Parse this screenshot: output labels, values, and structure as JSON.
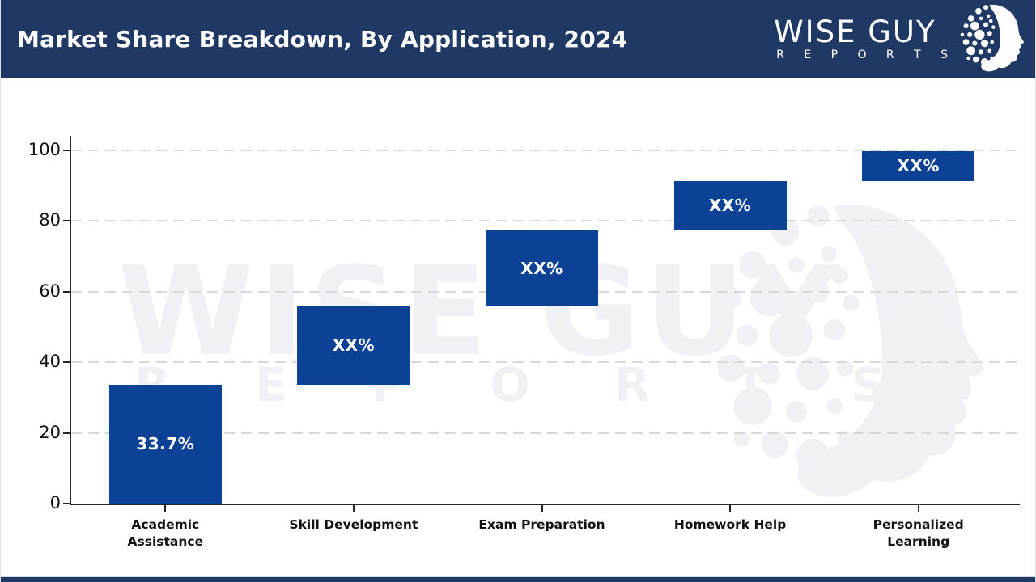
{
  "header": {
    "title": "Market Share Breakdown, By Application, 2024",
    "logo": {
      "primary": "WISE GUY",
      "secondary": "R E P O R T S"
    }
  },
  "watermark": {
    "primary": "WISE GUY",
    "secondary": "R E P O R T S"
  },
  "colors": {
    "page_bg": "#FFFFFF",
    "header_bg": "#1F3864",
    "header_text": "#FFFFFF",
    "footer_bg": "#1F3864",
    "bar": "#0C4296",
    "bar_label": "#FFFFFF",
    "grid": "#D8D8D8",
    "axis": "#262626",
    "tick_text": "#111111",
    "category_text": "#111111",
    "watermark": "#F0F1F4"
  },
  "chart_data": {
    "type": "bar",
    "variant": "waterfall",
    "title": "Market Share Breakdown, By Application, 2024",
    "categories": [
      "Academic Assistance",
      "Skill Development",
      "Exam Preparation",
      "Homework Help",
      "Personalized Learning"
    ],
    "category_lines": [
      [
        "Academic",
        "Assistance"
      ],
      [
        "Skill Development"
      ],
      [
        "Exam Preparation"
      ],
      [
        "Homework Help"
      ],
      [
        "Personalized",
        "Learning"
      ]
    ],
    "segments": [
      {
        "category": "Academic Assistance",
        "start": 0,
        "end": 33.7,
        "label": "33.7%"
      },
      {
        "category": "Skill Development",
        "start": 33.7,
        "end": 55.9,
        "label": "XX%"
      },
      {
        "category": "Exam Preparation",
        "start": 55.9,
        "end": 77.3,
        "label": "XX%"
      },
      {
        "category": "Homework Help",
        "start": 77.3,
        "end": 91.2,
        "label": "XX%"
      },
      {
        "category": "Personalized Learning",
        "start": 91.2,
        "end": 99.7,
        "label": "XX%"
      }
    ],
    "yticks": [
      0,
      20,
      40,
      60,
      80,
      100
    ],
    "ylim": [
      0,
      104
    ],
    "xlabel": "",
    "ylabel": "",
    "grid": "horizontal-dashed",
    "legend": "none",
    "bar_color": "#0C4296"
  }
}
